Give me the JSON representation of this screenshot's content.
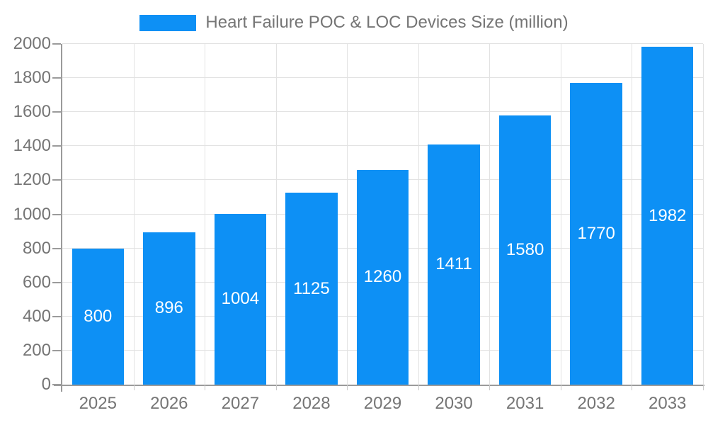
{
  "legend": {
    "label": "Heart Failure POC & LOC Devices Size (million)"
  },
  "chart_data": {
    "type": "bar",
    "title": "Heart Failure POC & LOC Devices Size (million)",
    "series_name": "Heart Failure POC & LOC Devices Size (million)",
    "categories": [
      "2025",
      "2026",
      "2027",
      "2028",
      "2029",
      "2030",
      "2031",
      "2032",
      "2033"
    ],
    "values": [
      800,
      896,
      1004,
      1125,
      1260,
      1411,
      1580,
      1770,
      1982
    ],
    "bar_value_labels": [
      "800",
      "896",
      "1004",
      "1125",
      "1260",
      "1411",
      "1580",
      "1770",
      "1982"
    ],
    "xlabel": "",
    "ylabel": "",
    "ylim": [
      0,
      2000
    ],
    "yticks": [
      0,
      200,
      400,
      600,
      800,
      1000,
      1200,
      1400,
      1600,
      1800,
      2000
    ],
    "grid": true,
    "legend_position": "top",
    "value_label_position": "inside-center"
  },
  "colors": {
    "bar": "#0d90f5",
    "bar_label": "#ffffff",
    "grid_line": "#e2e2e2",
    "grid_tick": "#c9c9c9",
    "axis_line": "#9b9b9b",
    "tick_text": "#757575",
    "title_text": "#757575",
    "background": "#ffffff"
  }
}
